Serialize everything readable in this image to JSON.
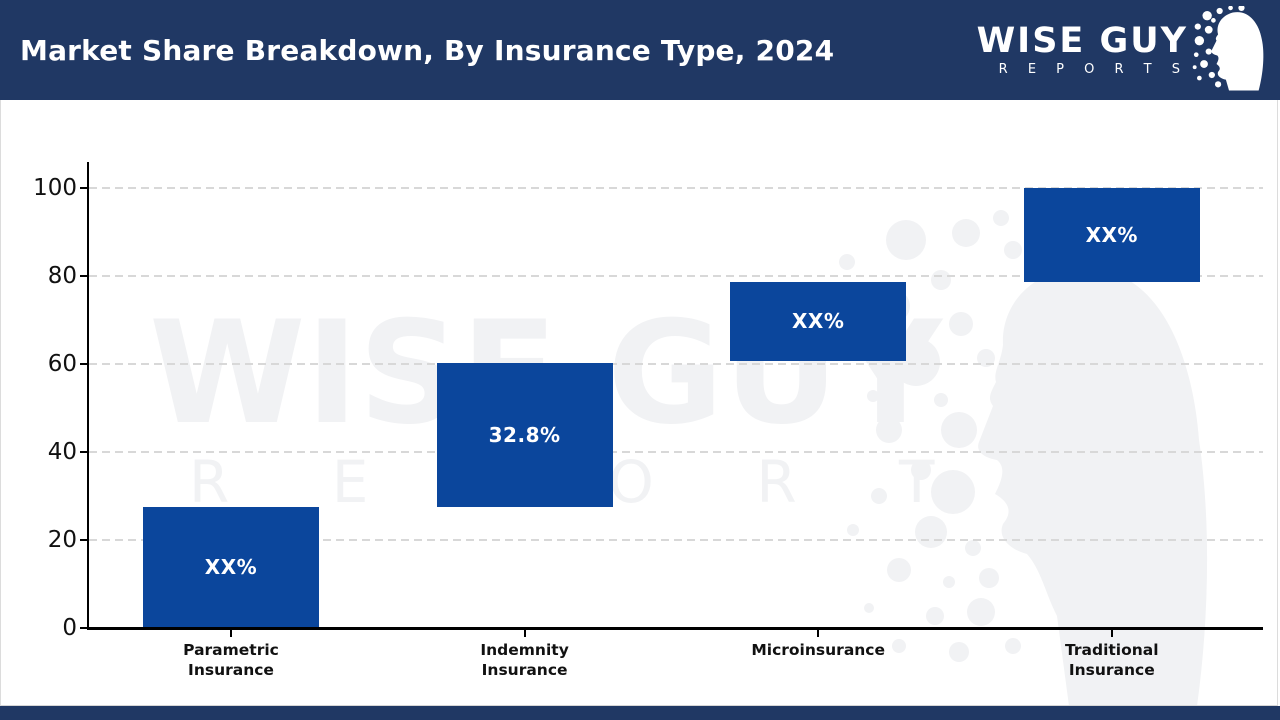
{
  "header": {
    "title": "Market Share Breakdown, By Insurance Type, 2024",
    "logo": {
      "line1": "WISE GUY",
      "line2": "R E P O R T S",
      "icon": "dotted-head-profile"
    }
  },
  "watermark": {
    "line1": "WISE GUY",
    "line2": "R E P O R T S",
    "icon": "dotted-head-profile"
  },
  "colors": {
    "header_bar": "#203864",
    "bar_fill": "#0B469C",
    "bar_label_text": "#ffffff",
    "gridline": "#d8d8d8",
    "axis": "#000000",
    "watermark": "#f1f2f4"
  },
  "chart_data": {
    "type": "bar",
    "subtype": "waterfall",
    "title": "Market Share Breakdown, By Insurance Type, 2024",
    "categories": [
      {
        "lines": [
          "Parametric",
          "Insurance"
        ]
      },
      {
        "lines": [
          "Indemnity",
          "Insurance"
        ]
      },
      {
        "lines": [
          "Microinsurance"
        ]
      },
      {
        "lines": [
          "Traditional",
          "Insurance"
        ]
      }
    ],
    "segments": [
      {
        "category": "Parametric Insurance",
        "start": 0,
        "end": 27.3,
        "label": "XX%"
      },
      {
        "category": "Indemnity Insurance",
        "start": 27.3,
        "end": 60.1,
        "label": "32.8%"
      },
      {
        "category": "Microinsurance",
        "start": 60.6,
        "end": 78.5,
        "label": "XX%"
      },
      {
        "category": "Traditional Insurance",
        "start": 78.5,
        "end": 100,
        "label": "XX%"
      }
    ],
    "yticks": [
      "0",
      "20",
      "40",
      "60",
      "80",
      "100"
    ],
    "ylim": [
      0,
      105
    ],
    "xlabel": "",
    "ylabel": "",
    "legend": "none",
    "grid": {
      "axis": "y",
      "style": "dashed"
    }
  }
}
